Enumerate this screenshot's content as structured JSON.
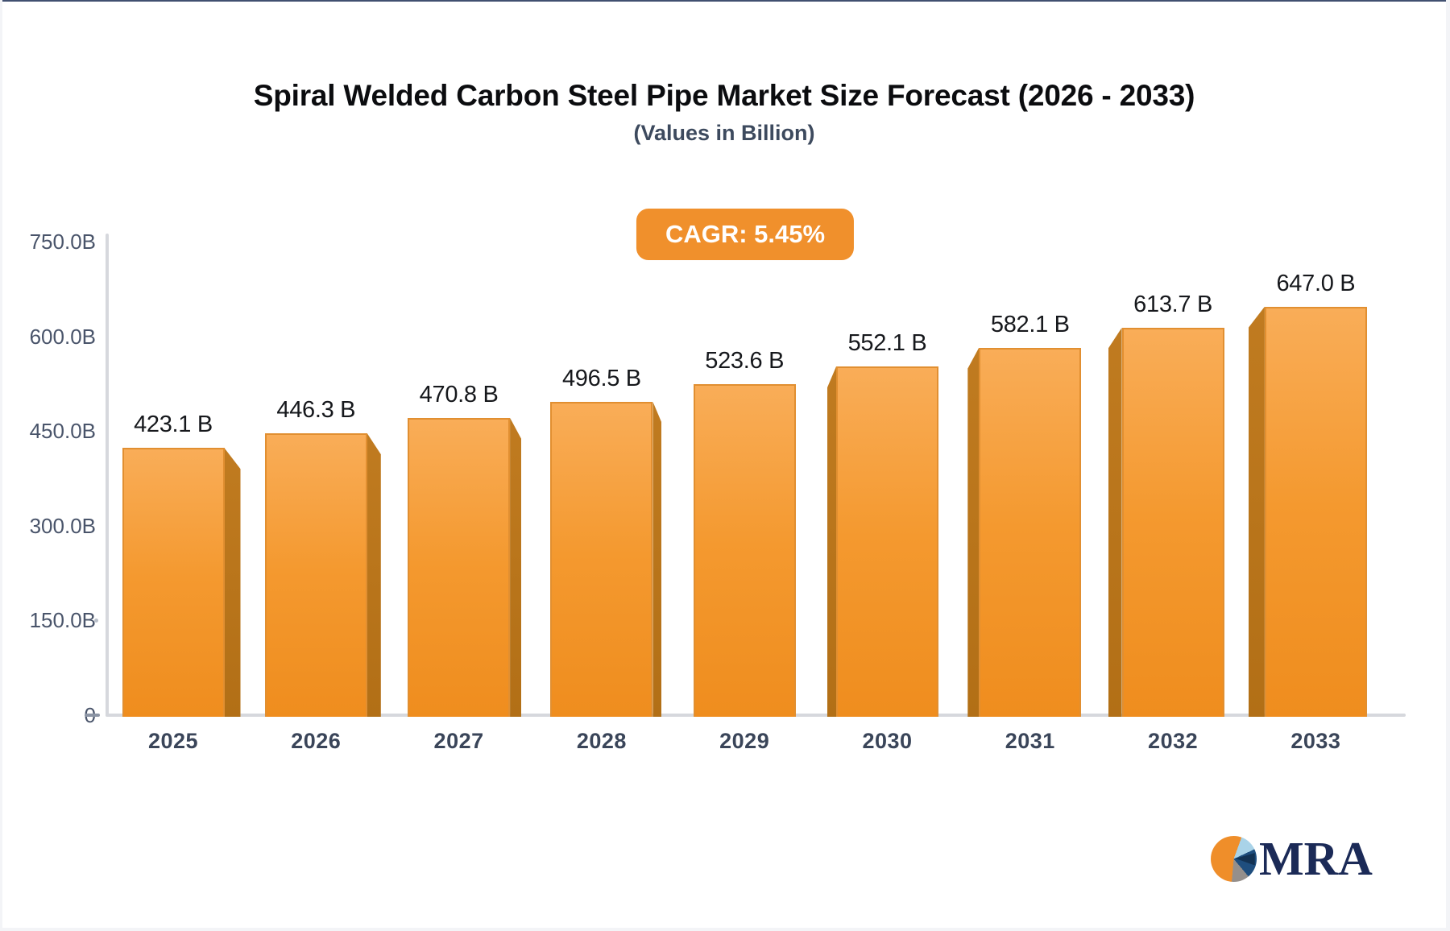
{
  "chart_data": {
    "type": "bar",
    "title": "Spiral Welded Carbon Steel Pipe Market Size Forecast (2026 - 2033)",
    "subtitle": "(Values in Billion)",
    "cagr": "CAGR: 5.45%",
    "categories": [
      "2025",
      "2026",
      "2027",
      "2028",
      "2029",
      "2030",
      "2031",
      "2032",
      "2033"
    ],
    "values": [
      423.1,
      446.3,
      470.8,
      496.5,
      523.6,
      552.1,
      582.1,
      613.7,
      647.0
    ],
    "value_suffix": " B",
    "ylim": [
      0,
      750
    ],
    "yticks": [
      {
        "label": "750.0B",
        "value": 750
      },
      {
        "label": "600.0B",
        "value": 600
      },
      {
        "label": "450.0B",
        "value": 450
      },
      {
        "label": "300.0B",
        "value": 300
      },
      {
        "label": "150.0B",
        "value": 150
      },
      {
        "label": "0",
        "value": 0
      }
    ],
    "grid": false,
    "legend": false,
    "style": "3d-bevel-bars",
    "colors": {
      "bar_face_top": "#f9ad58",
      "bar_face_bottom": "#ef8d1e",
      "bar_border": "#e18f31",
      "bar_side": "#b9751b",
      "badge_bg": "#f0902c",
      "badge_text": "#ffffff",
      "axis_line": "#d6d8dd",
      "tick_text": "#49546a",
      "category_text": "#3a4559",
      "value_text": "#16181c"
    }
  },
  "logo": {
    "text": "MRA",
    "colors": {
      "text": "#1b2a57",
      "pie_orange": "#ef8e2a",
      "pie_lightblue": "#a9d3e8",
      "pie_navy": "#1f4e7e",
      "pie_gray": "#958f8b",
      "pie_darknavy": "#133253"
    }
  }
}
